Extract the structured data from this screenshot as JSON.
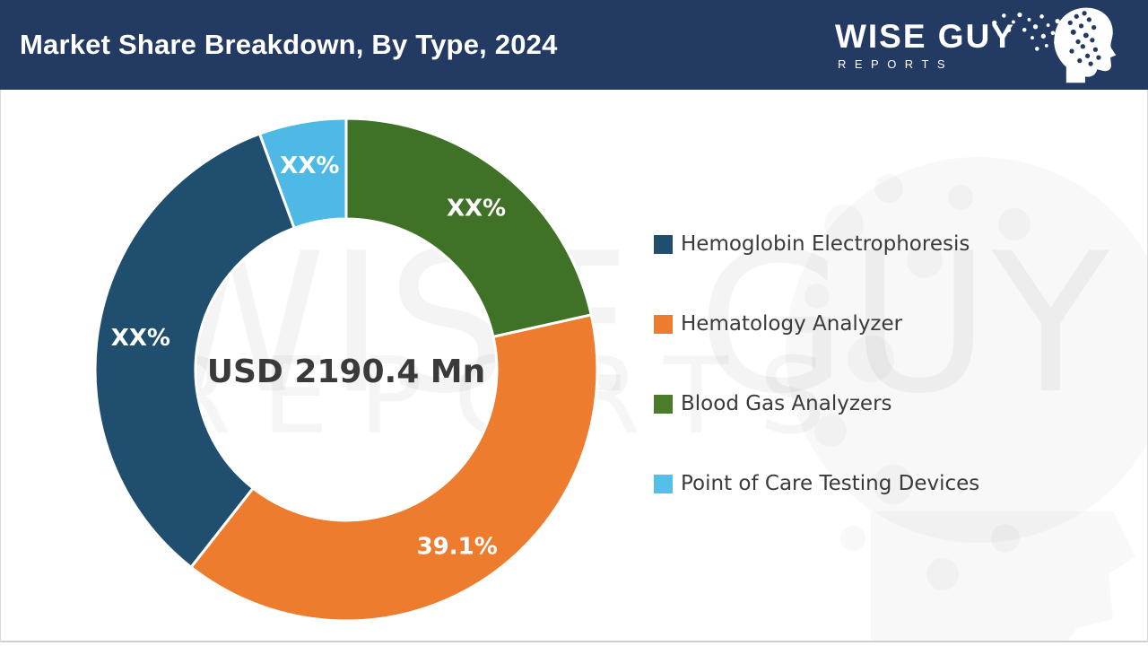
{
  "header": {
    "title": "Market Share Breakdown, By Type, 2024",
    "logo_line1": "WISE GUY",
    "logo_line2": "REPORTS",
    "bg_color": "#233a62"
  },
  "watermark": {
    "line1": "WISE GUY",
    "line2": "REPORTS"
  },
  "chart_data": {
    "type": "pie",
    "subtype": "donut",
    "title": "Market Share Breakdown, By Type, 2024",
    "center_label": "USD 2190.4 Mn",
    "start_angle_deg": 0,
    "direction": "clockwise",
    "inner_radius_ratio": 0.6,
    "legend_position": "right",
    "series": [
      {
        "name": "Blood Gas Analyzers",
        "share_pct": 21.5,
        "data_label": "XX%",
        "color": "#3f7126"
      },
      {
        "name": "Hematology Analyzer",
        "share_pct": 39.1,
        "data_label": "39.1%",
        "color": "#ed7c2f"
      },
      {
        "name": "Hemoglobin Electrophoresis",
        "share_pct": 33.8,
        "data_label": "XX%",
        "color": "#1f4e6e"
      },
      {
        "name": "Point of Care Testing Devices",
        "share_pct": 5.6,
        "data_label": "XX%",
        "color": "#4fb9e5"
      }
    ]
  },
  "legend": {
    "items": [
      {
        "label": "Hemoglobin Electrophoresis",
        "color": "#1f4e6e"
      },
      {
        "label": "Hematology Analyzer",
        "color": "#ed7c2f"
      },
      {
        "label": "Blood Gas Analyzers",
        "color": "#4a7c2c"
      },
      {
        "label": "Point of Care Testing Devices",
        "color": "#55c0e7"
      }
    ]
  }
}
